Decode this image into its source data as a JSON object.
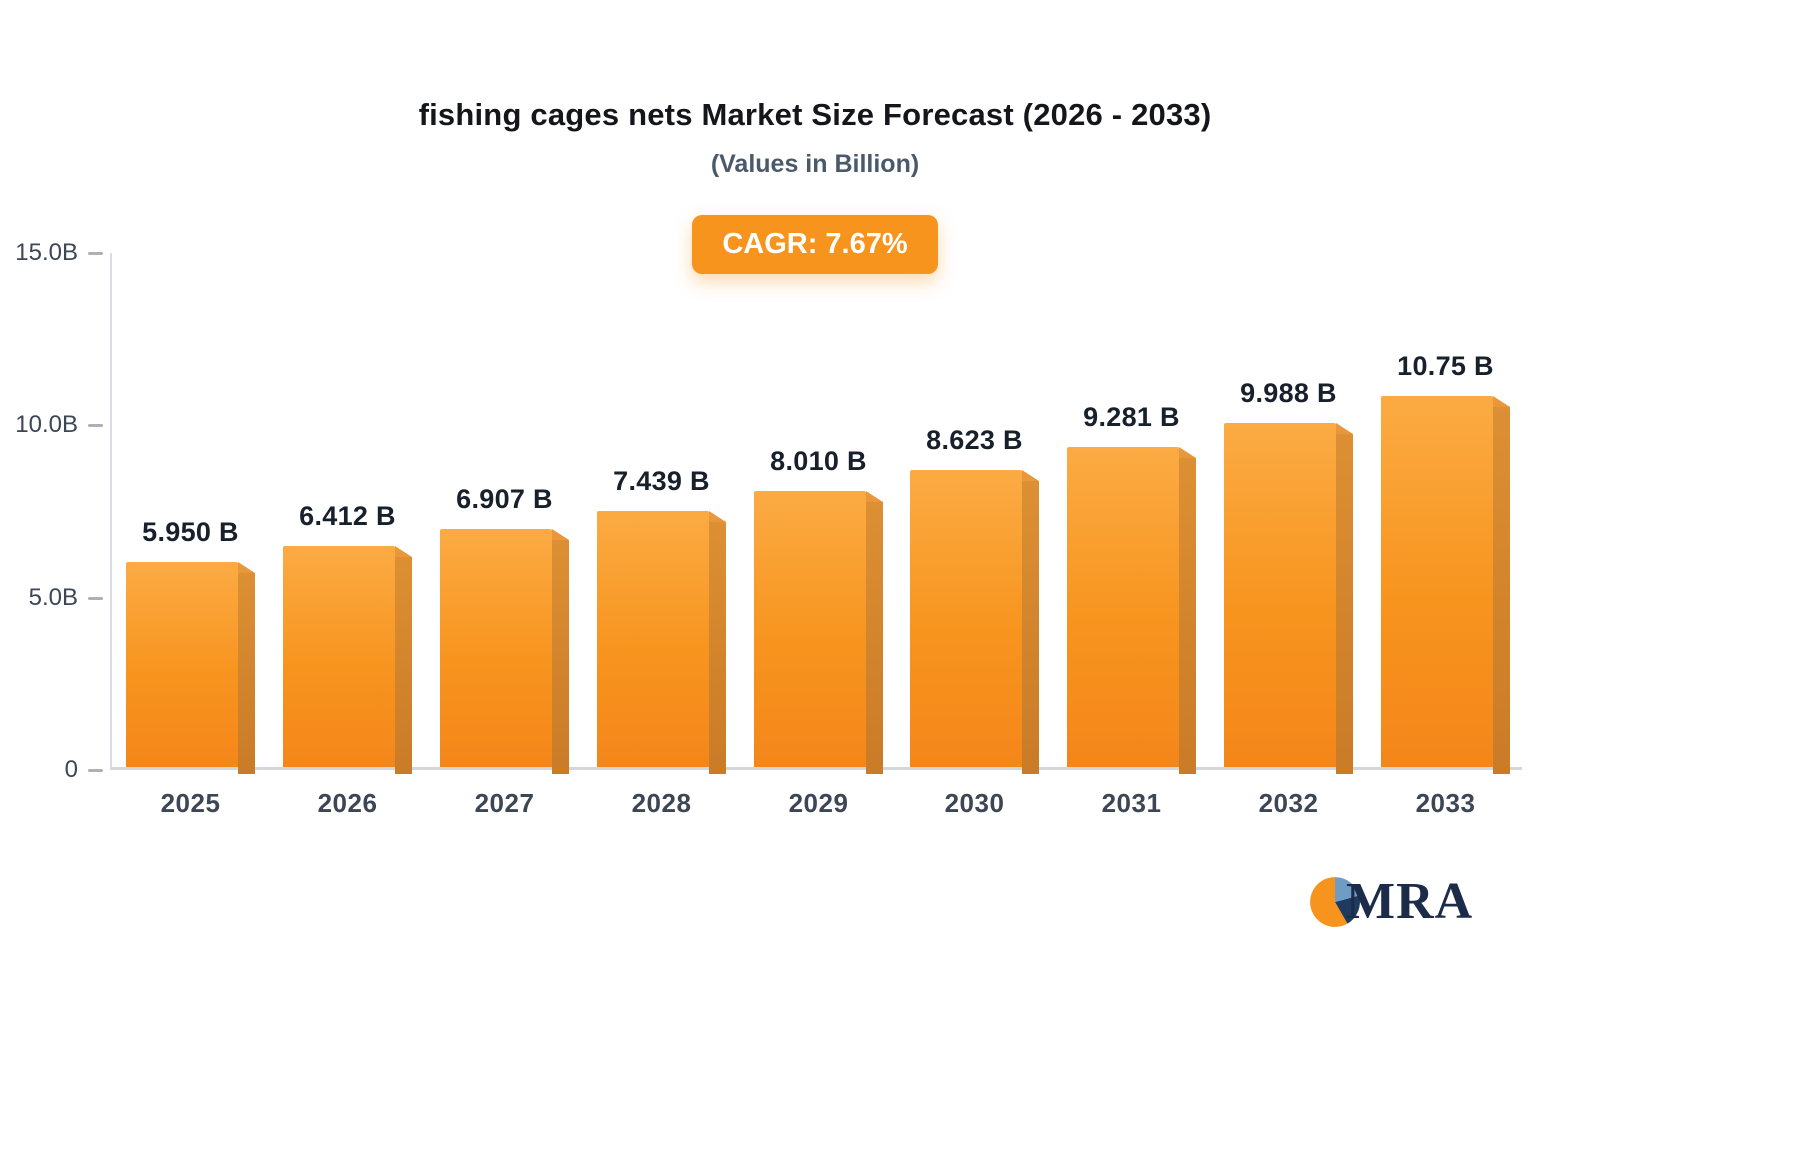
{
  "title": "fishing cages nets Market Size Forecast (2026 - 2033)",
  "subtitle": "(Values in Billion)",
  "badge_label": "CAGR: 7.67%",
  "logo": {
    "text": "MRA"
  },
  "colors": {
    "bar_main": "#F7941E",
    "bar_side": "#C97B27",
    "badge_background": "#F7941E",
    "badge_text": "#FFFFFF",
    "title_text": "#15151C",
    "subtitle_text": "#4B5A6B",
    "axis_line": "#D3D6DA",
    "tick_text": "#3C4654",
    "logo_navy": "#1C2B4A",
    "logo_blue": "#6F9CC4"
  },
  "chart_data": {
    "type": "bar",
    "title": "fishing cages nets Market Size Forecast (2026 - 2033)",
    "subtitle": "(Values in Billion)",
    "annotation": "CAGR: 7.67%",
    "categories": [
      "2025",
      "2026",
      "2027",
      "2028",
      "2029",
      "2030",
      "2031",
      "2032",
      "2033"
    ],
    "values": [
      5.95,
      6.412,
      6.907,
      7.439,
      8.01,
      8.623,
      9.281,
      9.988,
      10.75
    ],
    "labels": [
      "5.950 B",
      "6.412 B",
      "6.907 B",
      "7.439 B",
      "8.010 B",
      "8.623 B",
      "9.281 B",
      "9.988 B",
      "10.75 B"
    ],
    "xlabel": "",
    "ylabel": "",
    "ylim": [
      0,
      15
    ],
    "yticks": [
      "15.0B",
      "10.0B",
      "5.0B",
      "0"
    ],
    "ytick_values": [
      15,
      10,
      5,
      0
    ],
    "grid": false,
    "legend": false,
    "bar_style": "3d-orange-gradient"
  }
}
